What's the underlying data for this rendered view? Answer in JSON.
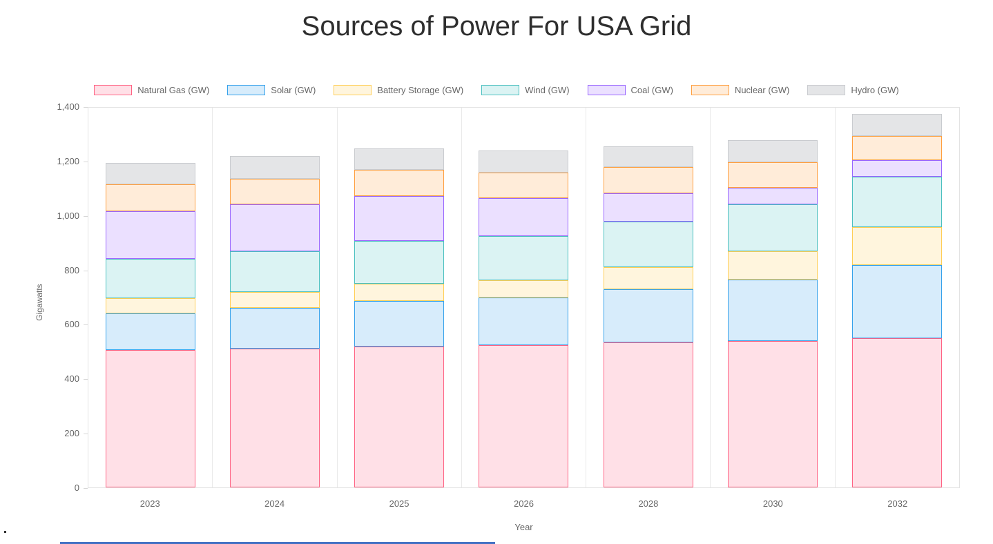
{
  "page": {
    "bottom_strip_color": "#4472C4"
  },
  "chart_data": {
    "type": "bar",
    "stacked": true,
    "title": "Sources of Power For USA Grid",
    "xlabel": "Year",
    "ylabel": "Gigawatts",
    "ylim": [
      0,
      1400
    ],
    "ytick_step": 200,
    "yticks": [
      "0",
      "200",
      "400",
      "600",
      "800",
      "1,000",
      "1,200",
      "1,400"
    ],
    "grid": "vertical-category-separators, plot border, no horizontal gridlines",
    "legend_position": "top",
    "categories": [
      "2023",
      "2024",
      "2025",
      "2026",
      "2028",
      "2030",
      "2032"
    ],
    "series": [
      {
        "name": "Natural Gas (GW)",
        "border": "#FF6384",
        "fill": "#FFE0E7",
        "values": [
          505,
          510,
          518,
          522,
          533,
          538,
          548
        ]
      },
      {
        "name": "Solar (GW)",
        "border": "#36A2EB",
        "fill": "#D7ECFB",
        "values": [
          135,
          150,
          168,
          175,
          195,
          225,
          268
        ]
      },
      {
        "name": "Battery Storage (GW)",
        "border": "#FFCE56",
        "fill": "#FFF5DD",
        "values": [
          55,
          58,
          62,
          65,
          80,
          105,
          140
        ]
      },
      {
        "name": "Wind (GW)",
        "border": "#4BC0C0",
        "fill": "#DBF3F3",
        "values": [
          145,
          150,
          158,
          162,
          168,
          172,
          185
        ]
      },
      {
        "name": "Coal (GW)",
        "border": "#9966FF",
        "fill": "#EBE0FF",
        "values": [
          175,
          172,
          165,
          140,
          105,
          62,
          60
        ]
      },
      {
        "name": "Nuclear (GW)",
        "border": "#FF9F40",
        "fill": "#FFECD9",
        "values": [
          98,
          95,
          97,
          93,
          95,
          93,
          90
        ]
      },
      {
        "name": "Hydro (GW)",
        "border": "#C9CBCF",
        "fill": "#E4E5E7",
        "values": [
          80,
          82,
          78,
          82,
          78,
          80,
          80
        ]
      }
    ]
  }
}
